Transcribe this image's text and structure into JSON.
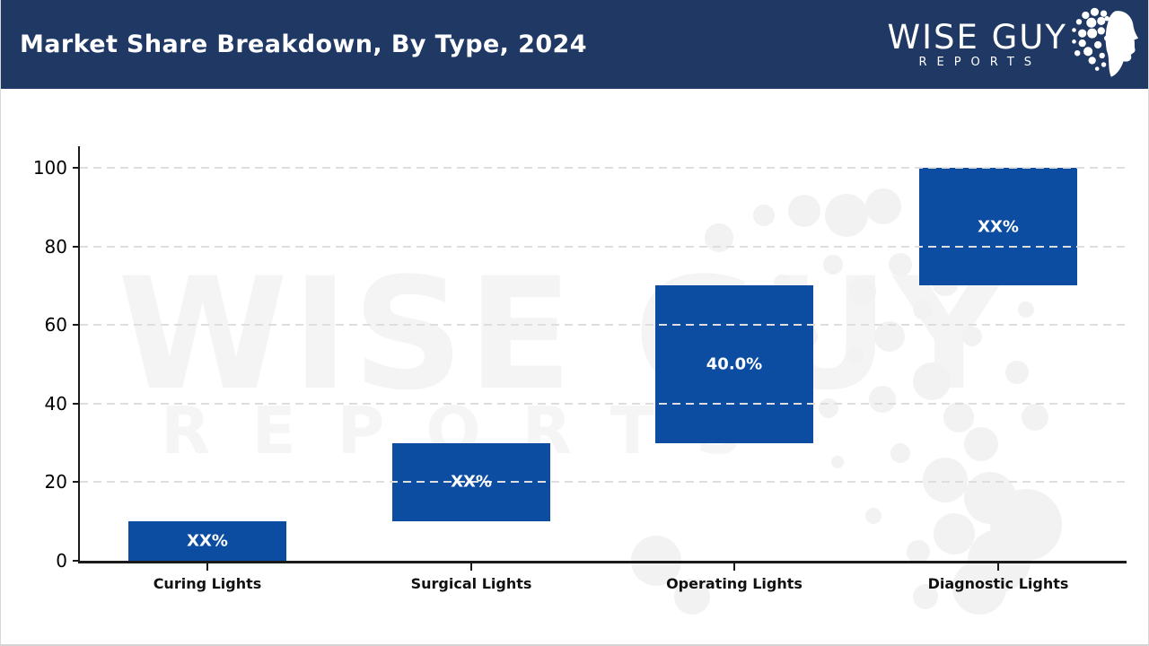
{
  "header": {
    "title": "Market Share Breakdown, By Type, 2024",
    "logo": {
      "line1": "WISE GUY",
      "line2": "REPORTS"
    }
  },
  "watermark": {
    "line1": "WISE GUY",
    "line2": "REPORTS"
  },
  "colors": {
    "header_bg": "#1f3864",
    "bar": "#0c4da2",
    "grid": "#dedede",
    "axis": "#1a1a1a",
    "bar_label": "#ffffff",
    "watermark": "#f4f4f4"
  },
  "chart_data": {
    "type": "bar",
    "subtype": "floating-waterfall",
    "title": "Market Share Breakdown, By Type, 2024",
    "xlabel": "",
    "ylabel": "",
    "categories": [
      "Curing Lights",
      "Surgical Lights",
      "Operating Lights",
      "Diagnostic Lights"
    ],
    "bars": [
      {
        "category": "Curing Lights",
        "start": 0,
        "end": 10,
        "value": 10,
        "label": "XX%"
      },
      {
        "category": "Surgical Lights",
        "start": 10,
        "end": 30,
        "value": 20,
        "label": "XX%"
      },
      {
        "category": "Operating Lights",
        "start": 30,
        "end": 70,
        "value": 40,
        "label": "40.0%"
      },
      {
        "category": "Diagnostic Lights",
        "start": 70,
        "end": 100,
        "value": 30,
        "label": "XX%"
      }
    ],
    "y_ticks": [
      0,
      20,
      40,
      60,
      80,
      100
    ],
    "ylim": [
      0,
      105
    ],
    "grid": "horizontal-dashed",
    "legend": "none"
  }
}
